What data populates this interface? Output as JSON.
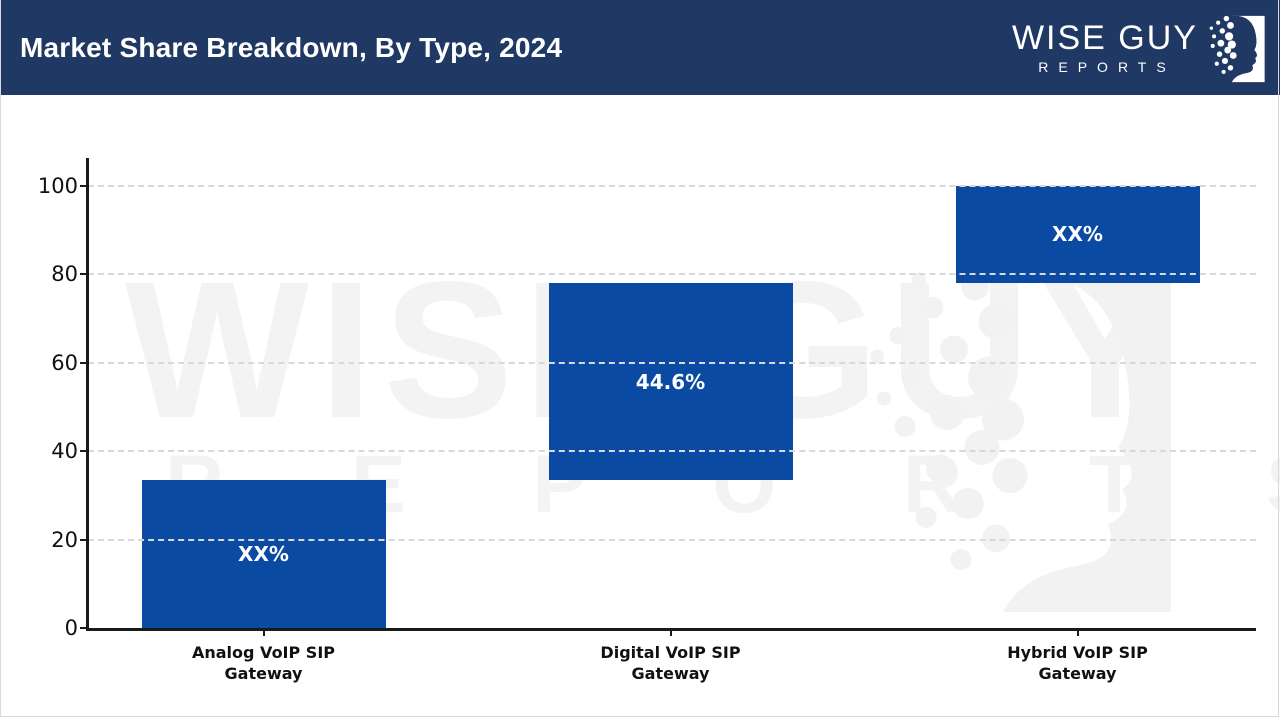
{
  "header": {
    "title": "Market Share Breakdown, By Type, 2024",
    "logo_line1": "WISE GUY",
    "logo_line2": "REPORTS"
  },
  "watermark": {
    "line1": "WISE GUY",
    "line2": "R E P O R T S"
  },
  "chart_data": {
    "type": "bar",
    "variant": "waterfall",
    "title": "Market Share Breakdown, By Type, 2024",
    "categories": [
      "Analog VoIP SIP Gateway",
      "Digital VoIP SIP Gateway",
      "Hybrid VoIP SIP Gateway"
    ],
    "categories_wrapped": [
      [
        "Analog VoIP SIP",
        "Gateway"
      ],
      [
        "Digital VoIP SIP",
        "Gateway"
      ],
      [
        "Hybrid VoIP SIP",
        "Gateway"
      ]
    ],
    "segments": [
      {
        "category": "Analog VoIP SIP Gateway",
        "start": 0,
        "end": 33.4,
        "height": 33.4,
        "value_label": "XX%"
      },
      {
        "category": "Digital VoIP SIP Gateway",
        "start": 33.4,
        "end": 78,
        "height": 44.6,
        "value_label": "44.6%"
      },
      {
        "category": "Hybrid VoIP SIP Gateway",
        "start": 78,
        "end": 100,
        "height": 22,
        "value_label": "XX%"
      }
    ],
    "yticks": [
      0,
      20,
      40,
      60,
      80,
      100
    ],
    "ylim": [
      0,
      105
    ],
    "xlabel": "",
    "ylabel": "",
    "grid": true,
    "legend": false,
    "bar_color": "#0b4aa2",
    "bar_label_color": "#ffffff"
  },
  "colors": {
    "header_bg": "#1f3864",
    "bar": "#0b4aa2",
    "grid": "#d8d8d8",
    "axis": "#1a1a1a",
    "watermark": "#f3f3f3",
    "border": "#d9d9d9"
  }
}
